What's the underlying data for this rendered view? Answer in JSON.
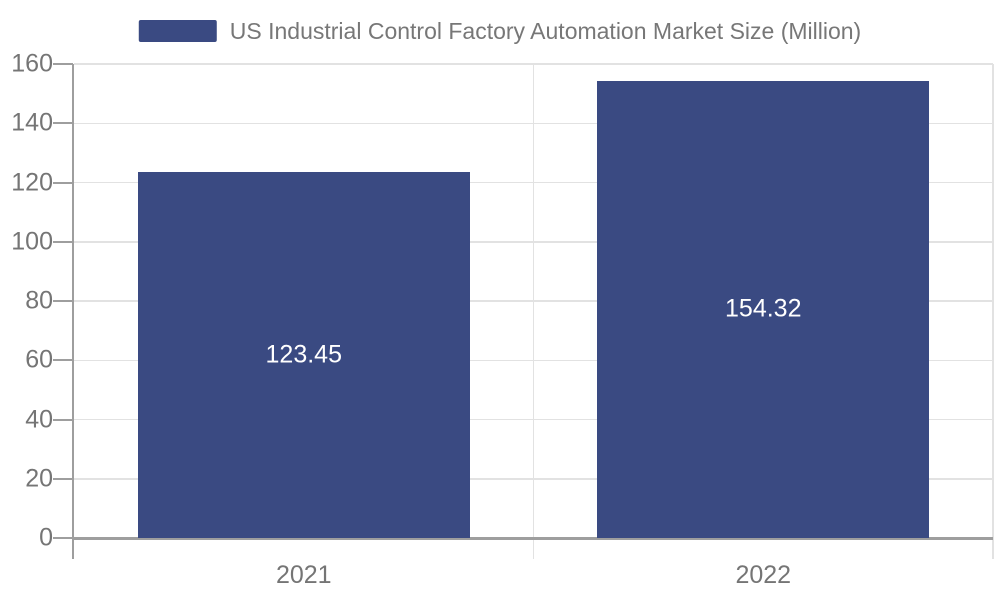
{
  "chart_data": {
    "type": "bar",
    "legend": "US Industrial Control Factory Automation Market Size (Million)",
    "categories": [
      "2021",
      "2022"
    ],
    "series": [
      {
        "name": "US Industrial Control Factory Automation Market Size (Million)",
        "values": [
          123.45,
          154.32
        ]
      }
    ],
    "value_labels": [
      "123.45",
      "154.32"
    ],
    "y_ticks": [
      "0",
      "20",
      "40",
      "60",
      "80",
      "100",
      "120",
      "140",
      "160"
    ],
    "ylim": [
      0,
      160
    ],
    "xlabel": "",
    "ylabel": "",
    "grid": true,
    "legend_position": "top-center",
    "colors": {
      "bar": "#3A4A82",
      "axis": "#9E9E9E",
      "grid": "#E2E2E2",
      "tick_label": "#757575",
      "legend_text": "#777777",
      "value_label": "#FFFFFF",
      "background": "#FFFFFF"
    }
  }
}
